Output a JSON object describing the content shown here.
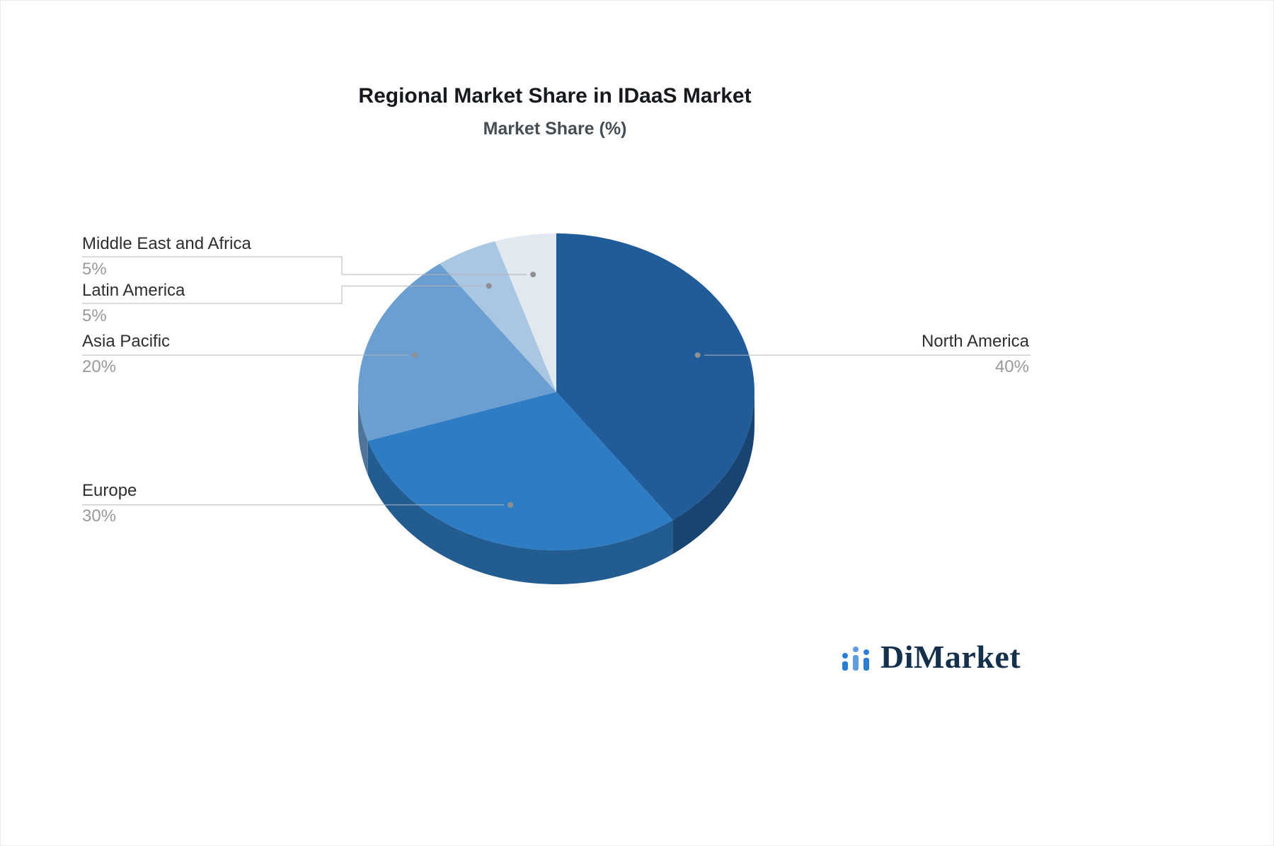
{
  "title": "Regional Market Share in IDaaS Market",
  "subtitle": "Market Share (%)",
  "logo": {
    "text": "DiMarket",
    "icon": "bar-chart-logo-icon"
  },
  "chart_data": {
    "type": "pie",
    "title": "Regional Market Share in IDaaS Market",
    "subtitle": "Market Share (%)",
    "unit": "%",
    "categories": [
      "North America",
      "Europe",
      "Asia Pacific",
      "Latin America",
      "Middle East and Africa"
    ],
    "values": [
      40,
      30,
      20,
      5,
      5
    ],
    "labels": [
      "40%",
      "30%",
      "20%",
      "5%",
      "5%"
    ],
    "colors": [
      "#1f5c99",
      "#2e7cc3",
      "#6b9ed1",
      "#a9c6e2",
      "#e2e8ef"
    ],
    "style": "3d",
    "start_angle_deg": 0,
    "direction": "clockwise",
    "legend": "callout-labels",
    "leader_line_color": "#b5b5b5",
    "label_color": "#2e2e2e",
    "value_color": "#98999b"
  }
}
